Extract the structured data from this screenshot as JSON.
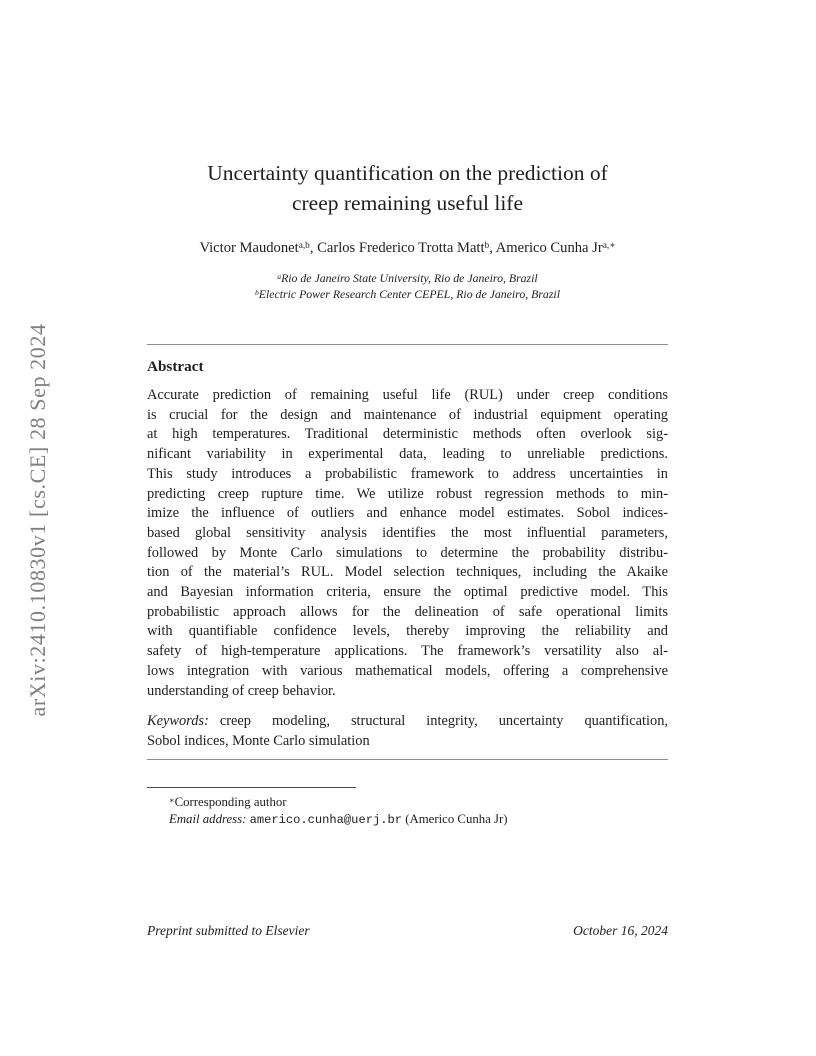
{
  "watermark": {
    "text": "arXiv:2410.10830v1  [cs.CE]  28 Sep 2024",
    "color": "#7f7f7f"
  },
  "title": {
    "lines": [
      "Uncertainty quantification on the prediction of",
      "creep remaining useful life"
    ]
  },
  "authors": {
    "parts": [
      {
        "text": "Victor Maudonet"
      },
      {
        "text": "a,b",
        "sup": true
      },
      {
        "text": ", Carlos Frederico Trotta Matt"
      },
      {
        "text": "b",
        "sup": true
      },
      {
        "text": ", Americo Cunha Jr"
      },
      {
        "text": "a,∗",
        "sup": true
      }
    ]
  },
  "affiliations": [
    {
      "sup": "a",
      "text": "Rio de Janeiro State University, Rio de Janeiro, Brazil"
    },
    {
      "sup": "b",
      "text": "Electric Power Research Center CEPEL, Rio de Janeiro, Brazil"
    }
  ],
  "abstract": {
    "heading": "Abstract",
    "lines": [
      "Accurate prediction of remaining useful life (RUL) under creep conditions",
      "is crucial for the design and maintenance of industrial equipment operating",
      "at high temperatures. Traditional deterministic methods often overlook sig-",
      "nificant variability in experimental data, leading to unreliable predictions.",
      "This study introduces a probabilistic framework to address uncertainties in",
      "predicting creep rupture time. We utilize robust regression methods to min-",
      "imize the influence of outliers and enhance model estimates. Sobol indices-",
      "based global sensitivity analysis identifies the most influential parameters,",
      "followed by Monte Carlo simulations to determine the probability distribu-",
      "tion of the material’s RUL. Model selection techniques, including the Akaike",
      "and Bayesian information criteria, ensure the optimal predictive model. This",
      "probabilistic approach allows for the delineation of safe operational limits",
      "with quantifiable confidence levels, thereby improving the reliability and",
      "safety of high-temperature applications. The framework’s versatility also al-",
      "lows integration with various mathematical models, offering a comprehensive",
      "understanding of creep behavior."
    ]
  },
  "keywords": {
    "label": "Keywords:",
    "line1": "creep modeling, structural integrity, uncertainty quantification,",
    "line2": "Sobol indices, Monte Carlo simulation"
  },
  "footnote": {
    "star": "∗",
    "corresponding": "Corresponding author",
    "email_label": "Email address:",
    "email": "americo.cunha@uerj.br",
    "email_suffix": "(Americo Cunha Jr)"
  },
  "footer": {
    "left": "Preprint submitted to Elsevier",
    "right": "October 16, 2024"
  }
}
